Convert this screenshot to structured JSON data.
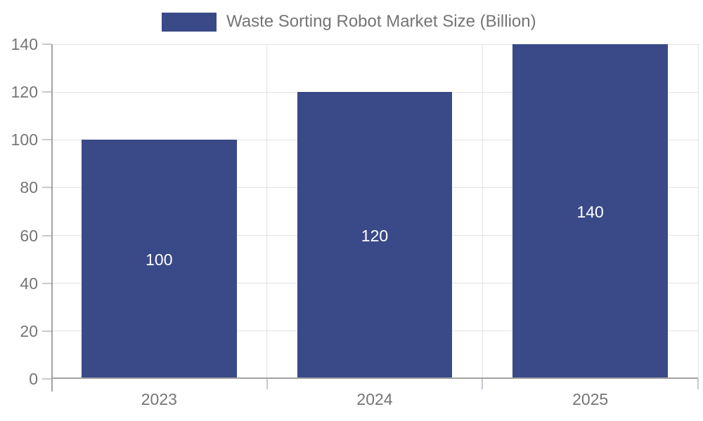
{
  "legend": {
    "label": "Waste Sorting Robot Market Size (Billion)"
  },
  "chart_data": {
    "type": "bar",
    "title": "Waste Sorting Robot Market Size (Billion)",
    "categories": [
      "2023",
      "2024",
      "2025"
    ],
    "values": [
      100,
      120,
      140
    ],
    "bar_labels": [
      "100",
      "120",
      "140"
    ],
    "xlabel": "",
    "ylabel": "",
    "ylim": [
      0,
      140
    ],
    "yticks": [
      0,
      20,
      40,
      60,
      80,
      100,
      120,
      140
    ],
    "grid": true,
    "legend_position": "top-center",
    "colors": {
      "bar": "#3A4A88",
      "axis": "#A3A3A3",
      "tick": "#C6C9D2",
      "grid": "#E2E2E2",
      "tick_text": "#757575",
      "bar_label_text": "#FFFFFF",
      "background": "#FFFFFF"
    }
  }
}
